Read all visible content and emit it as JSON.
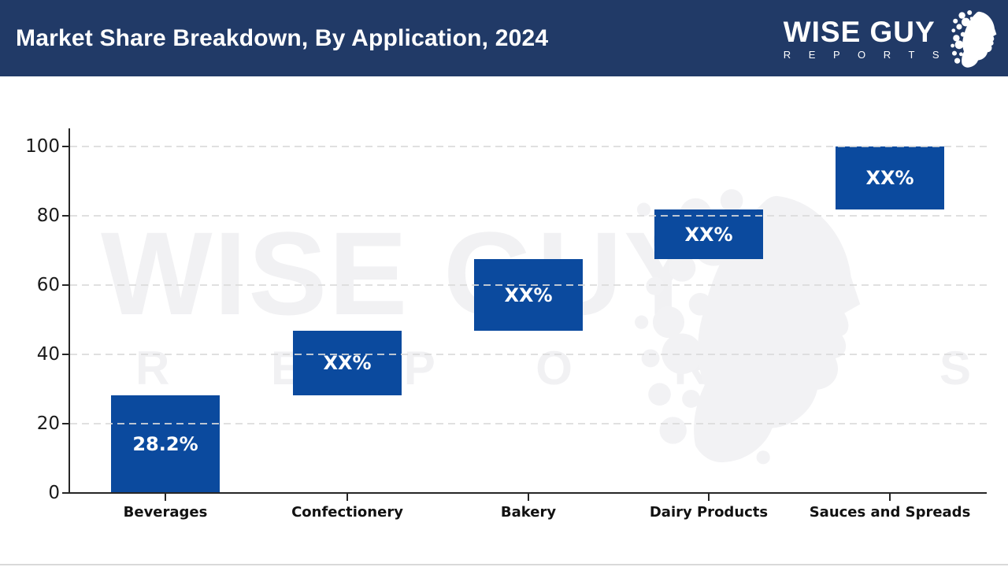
{
  "header": {
    "title": "Market Share Breakdown, By Application, 2024",
    "bg_color": "#213a67",
    "logo": {
      "line1": "WISE GUY",
      "line2": "R E P O R T S",
      "head_icon": "dotted-head-profile-icon"
    }
  },
  "watermark": {
    "line1": "WISE GUY",
    "line2": "R E P O R T S",
    "head_icon": "dotted-head-profile-watermark",
    "color": "#f1f1f3"
  },
  "chart_data": {
    "type": "bar",
    "subtype": "waterfall",
    "title": "Market Share Breakdown, By Application, 2024",
    "categories": [
      "Beverages",
      "Confectionery",
      "Bakery",
      "Dairy Products",
      "Sauces and Spreads"
    ],
    "segments": [
      {
        "category": "Beverages",
        "start": 0,
        "end": 28.2,
        "label": "28.2%"
      },
      {
        "category": "Confectionery",
        "start": 28.2,
        "end": 46.8,
        "label": "XX%"
      },
      {
        "category": "Bakery",
        "start": 46.8,
        "end": 67.5,
        "label": "XX%"
      },
      {
        "category": "Dairy Products",
        "start": 67.5,
        "end": 81.8,
        "label": "XX%"
      },
      {
        "category": "Sauces and Spreads",
        "start": 81.8,
        "end": 100,
        "label": "XX%"
      }
    ],
    "y_ticks": [
      0,
      20,
      40,
      60,
      80,
      100
    ],
    "ylim": [
      0,
      100
    ],
    "xlabel": "",
    "ylabel": "",
    "grid": "dashed horizontal, drawn over bars",
    "legend": "none",
    "bar_color": "#0b4a9e",
    "bar_label_color": "#ffffff",
    "axis_color": "#262626",
    "gridline_color": "#dbdbdb"
  }
}
